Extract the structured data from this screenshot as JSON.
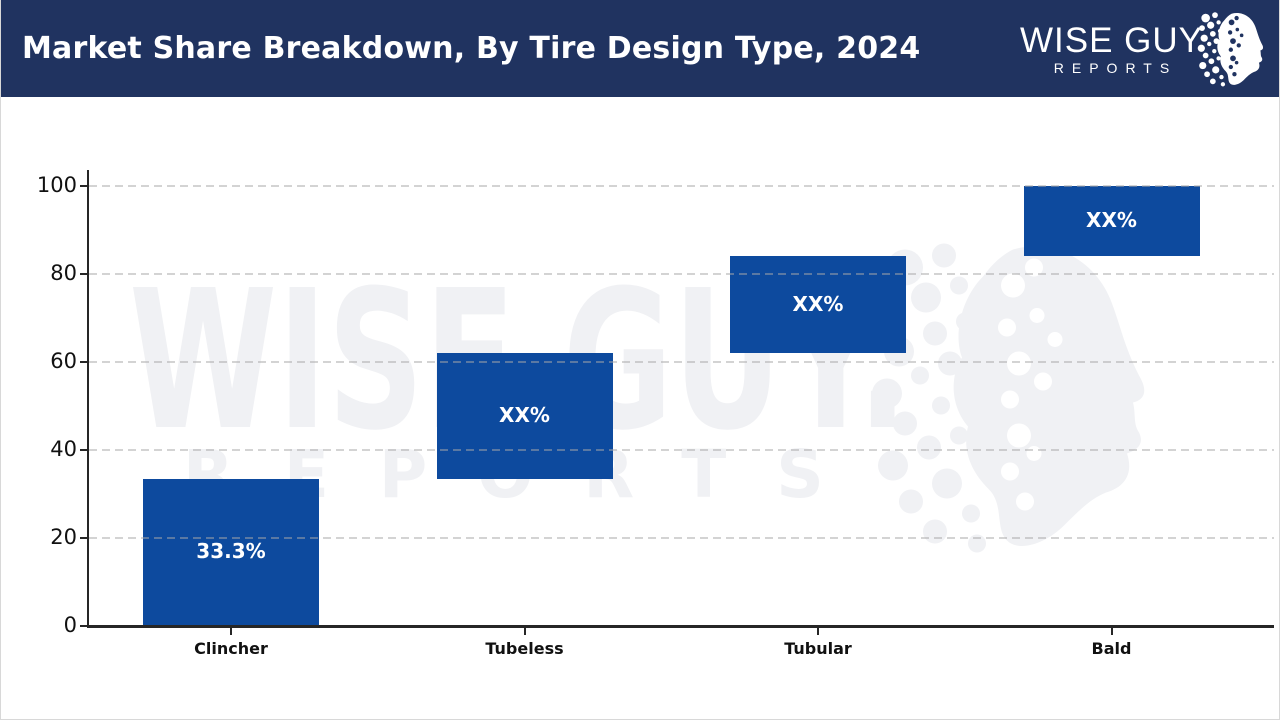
{
  "header": {
    "title": "Market Share Breakdown, By Tire Design Type, 2024",
    "logo": {
      "top": "WISE GUY",
      "bottom": "REPORTS",
      "head_icon": "dotted-head-profile-icon"
    }
  },
  "watermark": {
    "top": "WISE GUY.",
    "bottom": "REPORTS",
    "head_icon": "dotted-head-profile-icon"
  },
  "chart_data": {
    "type": "bar",
    "subtype": "waterfall",
    "title": "Market Share Breakdown, By Tire Design Type, 2024",
    "categories": [
      "Clincher",
      "Tubeless",
      "Tubular",
      "Bald"
    ],
    "segments": [
      {
        "category": "Clincher",
        "start": 0,
        "end": 33.3,
        "label": "33.3%"
      },
      {
        "category": "Tubeless",
        "start": 33.3,
        "end": 62,
        "label": "XX%"
      },
      {
        "category": "Tubular",
        "start": 62,
        "end": 84,
        "label": "XX%"
      },
      {
        "category": "Bald",
        "start": 84,
        "end": 100,
        "label": "XX%"
      }
    ],
    "y_ticks": [
      0,
      20,
      40,
      60,
      80,
      100
    ],
    "ylim": [
      0,
      100
    ],
    "xlabel": "",
    "ylabel": "",
    "grid": "horizontal-dashed",
    "legend": "none",
    "colors": {
      "bar": "#0d4a9e",
      "bar_label": "#ffffff",
      "header_bg": "#203360",
      "axis": "#262626",
      "grid": "#d9d9d9",
      "tick_label": "#111111",
      "watermark": "#f0f1f4"
    }
  }
}
